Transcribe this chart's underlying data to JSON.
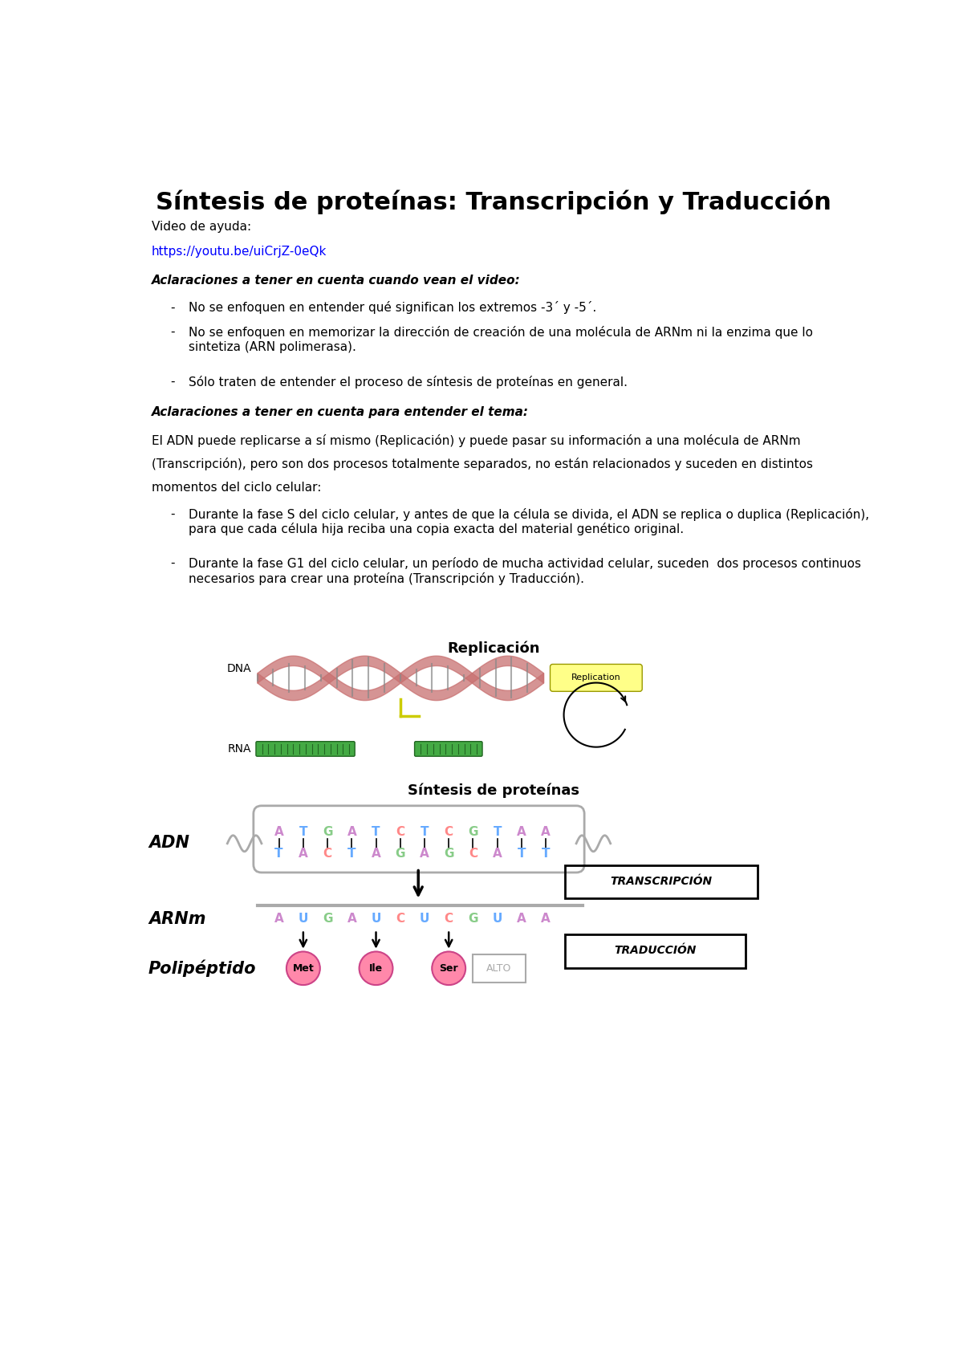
{
  "title": "Síntesis de proteínas: Transcripción y Traducción",
  "background_color": "#ffffff",
  "title_fontsize": 22,
  "body_fontsize": 11,
  "link_text": "https://youtu.be/uiCrjZ-0eQk",
  "link_color": "#0000FF",
  "section1_italic": "Aclaraciones a tener en cuenta cuando vean el video:",
  "bullets1": [
    "No se enfoquen en entender qué significan los extremos -3´ y -5´.",
    "No se enfoquen en memorizar la dirección de creación de una molécula de ARNm ni la enzima que lo\nsintetiza (ARN polimerasa).",
    "Sólo traten de entender el proceso de síntesis de proteínas en general."
  ],
  "section2_italic": "Aclaraciones a tener en cuenta para entender el tema:",
  "paragraph1_lines": [
    "El ADN puede replicarse a sí mismo (Replicación) y puede pasar su información a una molécula de ARNm",
    "(Transcripción), pero son dos procesos totalmente separados, no están relacionados y suceden en distintos",
    "momentos del ciclo celular:"
  ],
  "bullets2": [
    "Durante la fase S del ciclo celular, y antes de que la célula se divida, el ADN se replica o duplica (Replicación),\npara que cada célula hija reciba una copia exacta del material genético original.",
    "Durante la fase G1 del ciclo celular, un período de mucha actividad celular, suceden  dos procesos continuos\nnecesarios para crear una proteína (Transcripción y Traducción)."
  ],
  "diagram1_title": "Replicación",
  "diagram2_title": "Síntesis de proteínas",
  "adn_seq_top": [
    "A",
    "T",
    "G",
    "A",
    "T",
    "C",
    "T",
    "C",
    "G",
    "T",
    "A",
    "A"
  ],
  "adn_seq_bot": [
    "T",
    "A",
    "C",
    "T",
    "A",
    "G",
    "A",
    "G",
    "C",
    "A",
    "T",
    "T"
  ],
  "arnm_seq": [
    "A",
    "U",
    "G",
    "A",
    "U",
    "C",
    "U",
    "C",
    "G",
    "U",
    "A",
    "A"
  ],
  "top_colors": [
    "#CC88CC",
    "#66AAFF",
    "#88CC88",
    "#CC88CC",
    "#66AAFF",
    "#FF8888",
    "#66AAFF",
    "#FF8888",
    "#88CC88",
    "#66AAFF",
    "#CC88CC",
    "#CC88CC"
  ],
  "bot_colors": [
    "#66AAFF",
    "#CC88CC",
    "#FF8888",
    "#66AAFF",
    "#CC88CC",
    "#88CC88",
    "#CC88CC",
    "#88CC88",
    "#FF8888",
    "#CC88CC",
    "#66AAFF",
    "#66AAFF"
  ],
  "arnm_colors": [
    "#CC88CC",
    "#66AAFF",
    "#88CC88",
    "#CC88CC",
    "#66AAFF",
    "#FF8888",
    "#66AAFF",
    "#FF8888",
    "#88CC88",
    "#66AAFF",
    "#CC88CC",
    "#CC88CC"
  ],
  "peptide_labels": [
    "Met",
    "Ile",
    "Ser"
  ],
  "peptide_colors": [
    "#FF88AA",
    "#FF88AA",
    "#FF88AA"
  ],
  "alto_label": "ALTO",
  "transcripcion_label": "TRANSCRIPCIÓN",
  "traduccion_label": "TRADUCCIÓN",
  "dna_label": "DNA",
  "rna_label": "RNA",
  "adn_label": "ADN",
  "arnm_label": "ARNm",
  "polipeptido_label": "Polipéptido",
  "replication_box_label": "Replication"
}
